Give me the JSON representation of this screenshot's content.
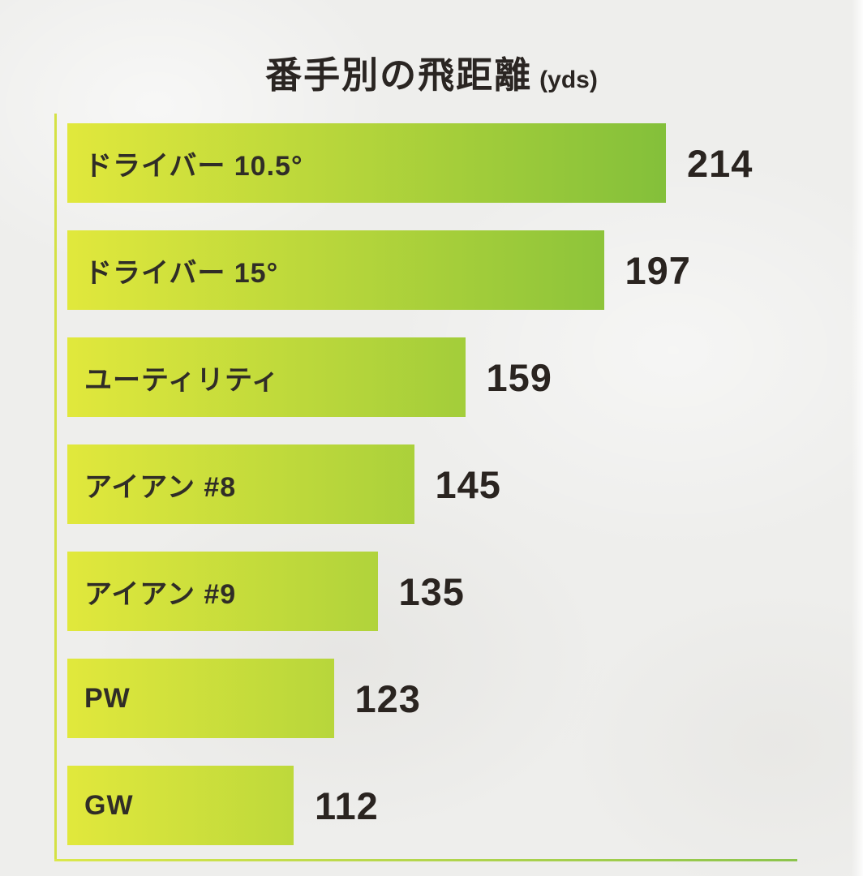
{
  "title": {
    "main": "番手別の飛距離",
    "unit": "(yds)"
  },
  "chart_data": {
    "type": "bar",
    "orientation": "horizontal",
    "title": "番手別の飛距離 (yds)",
    "xlabel": "",
    "ylabel": "",
    "categories": [
      "ドライバー 10.5°",
      "ドライバー 15°",
      "ユーティリティ",
      "アイアン #8",
      "アイアン #9",
      "PW",
      "GW"
    ],
    "values": [
      214,
      197,
      159,
      145,
      135,
      123,
      112
    ],
    "xlim": [
      50,
      250
    ],
    "grid": false,
    "legend": false,
    "value_labels": "outside-end",
    "colors": {
      "bar_gradient_start": "#e1e83c",
      "bar_gradient_end": "#6fb739",
      "axis_line": "#d4e145",
      "text_dark": "#2a2420",
      "background": "#eeeeec"
    }
  }
}
